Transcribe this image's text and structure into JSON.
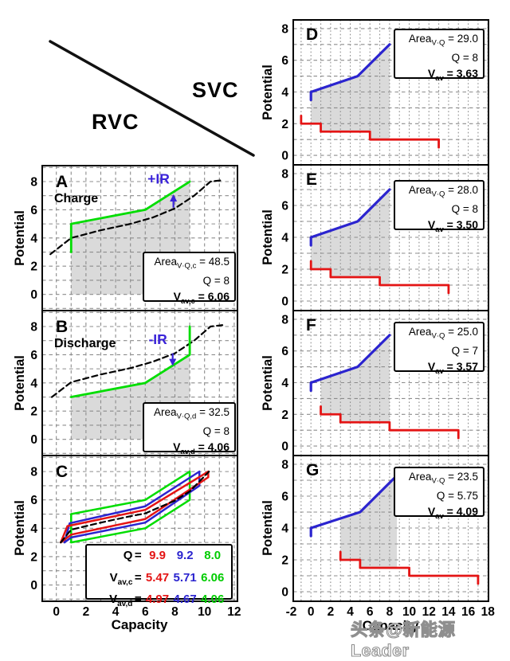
{
  "header": {
    "svc": "SVC",
    "rvc": "RVC"
  },
  "axes": {
    "ylabel": "Potential",
    "xlabel_left": "Capacity",
    "xlabel_right": "Capacity"
  },
  "watermark": "头条@新能源Leader",
  "colors": {
    "green": "#00dd00",
    "blue": "#2b24cf",
    "red": "#e41414",
    "dashed": "#000000",
    "annotation": "#3a23d9",
    "shade": "#dadada",
    "grid": "#8c8c8c",
    "frame": "#000000"
  },
  "chart_data": [
    {
      "id": "A",
      "label": "A",
      "sublabel": "Charge",
      "type": "line",
      "xlim": [
        -0.95,
        12.22
      ],
      "ylim": [
        -1.15,
        9.13
      ],
      "xticks": [
        0,
        2,
        4,
        6,
        8,
        10,
        12
      ],
      "yticks": [
        0,
        2,
        4,
        6,
        8
      ],
      "xticks_visible": false,
      "grid_step": 1,
      "shade": [
        [
          1,
          0
        ],
        [
          1,
          5
        ],
        [
          6,
          6
        ],
        [
          9,
          8
        ],
        [
          9,
          0
        ]
      ],
      "series": [
        {
          "name": "rvc-dashed-line",
          "color": "#000000",
          "width": 2.2,
          "dash": "7 4.5",
          "points": [
            [
              -0.4,
              2.85
            ],
            [
              1,
              4.0
            ],
            [
              3,
              4.55
            ],
            [
              5,
              5.0
            ],
            [
              6.5,
              5.45
            ],
            [
              8,
              6.1
            ],
            [
              9.3,
              7.0
            ],
            [
              10.4,
              8.0
            ],
            [
              11.2,
              8.1
            ]
          ]
        },
        {
          "name": "svc-charge-line",
          "color": "#00dd00",
          "width": 2.8,
          "points": [
            [
              1,
              3
            ],
            [
              1,
              5
            ],
            [
              6,
              6
            ],
            [
              9,
              8
            ]
          ]
        }
      ],
      "annotation": {
        "text": "+IR",
        "x": 7.9,
        "y_from": 6.15,
        "y_to": 7.1,
        "text_x": 6.9,
        "text_y": 7.85
      },
      "stats": [
        {
          "main": "Area",
          "sub": "V·Q,c",
          "rest": " = 48.5"
        },
        {
          "main": "Q",
          "sub": "",
          "rest": " = 8"
        },
        {
          "main": "V",
          "sub": "av,c",
          "rest": " = 6.06"
        }
      ]
    },
    {
      "id": "B",
      "label": "B",
      "sublabel": "Discharge",
      "type": "line",
      "xlim": [
        -0.95,
        12.22
      ],
      "ylim": [
        -1.15,
        9.13
      ],
      "xticks": [
        0,
        2,
        4,
        6,
        8,
        10,
        12
      ],
      "yticks": [
        0,
        2,
        4,
        6,
        8
      ],
      "xticks_visible": false,
      "grid_step": 1,
      "shade": [
        [
          1,
          0
        ],
        [
          1,
          3
        ],
        [
          6,
          4
        ],
        [
          9,
          6
        ],
        [
          9,
          0
        ]
      ],
      "series": [
        {
          "name": "rvc-dashed-line",
          "color": "#000000",
          "width": 2.2,
          "dash": "7 4.5",
          "points": [
            [
              -0.3,
              3.0
            ],
            [
              1,
              4.05
            ],
            [
              3,
              4.6
            ],
            [
              5,
              5.05
            ],
            [
              6.5,
              5.5
            ],
            [
              8,
              6.1
            ],
            [
              9.3,
              7.0
            ],
            [
              10.4,
              8.0
            ],
            [
              11.2,
              8.1
            ]
          ]
        },
        {
          "name": "svc-discharge-line",
          "color": "#00dd00",
          "width": 2.8,
          "points": [
            [
              1,
              3
            ],
            [
              6,
              4
            ],
            [
              9,
              6
            ],
            [
              9,
              8
            ]
          ]
        }
      ],
      "annotation": {
        "text": "-IR",
        "x": 7.85,
        "y_from": 6.1,
        "y_to": 5.2,
        "text_x": 6.85,
        "text_y": 6.75
      },
      "stats": [
        {
          "main": "Area",
          "sub": "V·Q,d",
          "rest": " = 32.5"
        },
        {
          "main": "Q",
          "sub": "",
          "rest": " = 8"
        },
        {
          "main": "V",
          "sub": "av,d",
          "rest": " = 4.06"
        }
      ]
    },
    {
      "id": "C",
      "label": "C",
      "sublabel": "",
      "type": "line",
      "xlim": [
        -0.95,
        12.22
      ],
      "ylim": [
        -1.15,
        9.13
      ],
      "xticks": [
        0,
        2,
        4,
        6,
        8,
        10,
        12
      ],
      "yticks": [
        0,
        2,
        4,
        6,
        8
      ],
      "xticks_visible": true,
      "grid_step": 1,
      "series": [
        {
          "name": "green-loop",
          "color": "#00dd00",
          "width": 2.5,
          "points": [
            [
              1,
              3
            ],
            [
              1,
              5
            ],
            [
              6,
              6
            ],
            [
              9,
              8
            ],
            [
              9,
              6
            ],
            [
              6,
              4
            ],
            [
              1,
              3
            ]
          ]
        },
        {
          "name": "blue-loop",
          "color": "#2b24cf",
          "width": 2.5,
          "points": [
            [
              0.55,
              3
            ],
            [
              0.9,
              4.35
            ],
            [
              6,
              5.55
            ],
            [
              9.65,
              8
            ],
            [
              9.65,
              7.0
            ],
            [
              6,
              4.4
            ],
            [
              1,
              3.35
            ],
            [
              0.55,
              3
            ]
          ]
        },
        {
          "name": "red-loop",
          "color": "#e41414",
          "width": 2.5,
          "points": [
            [
              0.3,
              3
            ],
            [
              0.75,
              4.15
            ],
            [
              6,
              5.3
            ],
            [
              10.25,
              8
            ],
            [
              10.25,
              7.6
            ],
            [
              6,
              4.65
            ],
            [
              1,
              3.55
            ],
            [
              0.3,
              3
            ]
          ]
        },
        {
          "name": "equilibrium-dashed-line",
          "color": "#000000",
          "width": 2.2,
          "dash": "7 4.5",
          "points": [
            [
              0.3,
              3.0
            ],
            [
              1,
              3.9
            ],
            [
              3,
              4.4
            ],
            [
              5,
              4.85
            ],
            [
              6,
              5.05
            ],
            [
              8,
              5.95
            ],
            [
              9,
              6.6
            ],
            [
              10.3,
              8.0
            ]
          ]
        }
      ],
      "table": {
        "value_colors": [
          "#e41414",
          "#2b24cf",
          "#00cc00"
        ],
        "rows": [
          {
            "main": "Q",
            "sub": "",
            "eq": "=",
            "values": [
              "9.9",
              "9.2",
              "8.0"
            ]
          },
          {
            "main": "V",
            "sub": "av,c",
            "eq": "=",
            "values": [
              "5.47",
              "5.71",
              "6.06"
            ]
          },
          {
            "main": "V",
            "sub": "av,d",
            "eq": "=",
            "values": [
              "4.97",
              "4.67",
              "4.06"
            ]
          }
        ]
      }
    },
    {
      "id": "D",
      "label": "D",
      "sublabel": "",
      "type": "line",
      "xlim": [
        -1.8,
        18.06
      ],
      "ylim": [
        -0.6,
        8.55
      ],
      "xticks": [
        -2,
        0,
        2,
        4,
        6,
        8,
        10,
        12,
        14,
        16,
        18
      ],
      "yticks": [
        0,
        2,
        4,
        6,
        8
      ],
      "xticks_visible": false,
      "grid_step": 1,
      "shade": [
        [
          0,
          4
        ],
        [
          4.75,
          5
        ],
        [
          8,
          7
        ],
        [
          8,
          1
        ],
        [
          6,
          1
        ],
        [
          6,
          1.5
        ],
        [
          1,
          1.5
        ],
        [
          1,
          2
        ],
        [
          0,
          2
        ]
      ],
      "series": [
        {
          "name": "charge-blue-curve",
          "color": "#2b24cf",
          "width": 3.2,
          "points": [
            [
              0,
              3.5
            ],
            [
              0,
              4
            ],
            [
              4.75,
              5
            ],
            [
              8,
              7
            ]
          ]
        },
        {
          "name": "discharge-red-steps",
          "color": "#e41414",
          "width": 2.8,
          "points": [
            [
              -1,
              2.5
            ],
            [
              -1,
              2
            ],
            [
              1,
              2
            ],
            [
              1,
              1.5
            ],
            [
              6,
              1.5
            ],
            [
              6,
              1
            ],
            [
              13,
              1
            ],
            [
              13,
              0.5
            ]
          ]
        }
      ],
      "stats": [
        {
          "main": "Area",
          "sub": "V·Q",
          "rest": " = 29.0"
        },
        {
          "main": "Q",
          "sub": "",
          "rest": " = 8"
        },
        {
          "main": "V",
          "sub": "av",
          "rest": " = 3.63"
        }
      ]
    },
    {
      "id": "E",
      "label": "E",
      "sublabel": "",
      "type": "line",
      "xlim": [
        -1.8,
        18.06
      ],
      "ylim": [
        -0.6,
        8.55
      ],
      "xticks": [
        -2,
        0,
        2,
        4,
        6,
        8,
        10,
        12,
        14,
        16,
        18
      ],
      "yticks": [
        0,
        2,
        4,
        6,
        8
      ],
      "xticks_visible": false,
      "grid_step": 1,
      "shade": [
        [
          0,
          4
        ],
        [
          4.75,
          5
        ],
        [
          8,
          7
        ],
        [
          8,
          1
        ],
        [
          7,
          1
        ],
        [
          7,
          1.5
        ],
        [
          2,
          1.5
        ],
        [
          2,
          2
        ],
        [
          0,
          2
        ]
      ],
      "series": [
        {
          "name": "charge-blue-curve",
          "color": "#2b24cf",
          "width": 3.2,
          "points": [
            [
              0,
              3.5
            ],
            [
              0,
              4
            ],
            [
              4.75,
              5
            ],
            [
              8,
              7
            ]
          ]
        },
        {
          "name": "discharge-red-steps",
          "color": "#e41414",
          "width": 2.8,
          "points": [
            [
              0,
              2.5
            ],
            [
              0,
              2
            ],
            [
              2,
              2
            ],
            [
              2,
              1.5
            ],
            [
              7,
              1.5
            ],
            [
              7,
              1
            ],
            [
              14,
              1
            ],
            [
              14,
              0.5
            ]
          ]
        }
      ],
      "stats": [
        {
          "main": "Area",
          "sub": "V·Q",
          "rest": " = 28.0"
        },
        {
          "main": "Q",
          "sub": "",
          "rest": " = 8"
        },
        {
          "main": "V",
          "sub": "av",
          "rest": " = 3.50"
        }
      ]
    },
    {
      "id": "F",
      "label": "F",
      "sublabel": "",
      "type": "line",
      "xlim": [
        -1.8,
        18.06
      ],
      "ylim": [
        -0.6,
        8.55
      ],
      "xticks": [
        -2,
        0,
        2,
        4,
        6,
        8,
        10,
        12,
        14,
        16,
        18
      ],
      "yticks": [
        0,
        2,
        4,
        6,
        8
      ],
      "xticks_visible": false,
      "grid_step": 1,
      "shade": [
        [
          1,
          4.21
        ],
        [
          4.75,
          5
        ],
        [
          8,
          7
        ],
        [
          8,
          1.5
        ],
        [
          3,
          1.5
        ],
        [
          3,
          2
        ],
        [
          1,
          2
        ]
      ],
      "series": [
        {
          "name": "charge-blue-curve",
          "color": "#2b24cf",
          "width": 3.2,
          "points": [
            [
              0,
              3.5
            ],
            [
              0,
              4
            ],
            [
              4.75,
              5
            ],
            [
              8,
              7
            ]
          ]
        },
        {
          "name": "discharge-red-steps",
          "color": "#e41414",
          "width": 2.8,
          "points": [
            [
              1,
              2.5
            ],
            [
              1,
              2
            ],
            [
              3,
              2
            ],
            [
              3,
              1.5
            ],
            [
              8,
              1.5
            ],
            [
              8,
              1
            ],
            [
              15,
              1
            ],
            [
              15,
              0.5
            ]
          ]
        }
      ],
      "stats": [
        {
          "main": "Area",
          "sub": "V·Q",
          "rest": " = 25.0"
        },
        {
          "main": "Q",
          "sub": "",
          "rest": " = 7"
        },
        {
          "main": "V",
          "sub": "av",
          "rest": " = 3.57"
        }
      ]
    },
    {
      "id": "G",
      "label": "G",
      "sublabel": "",
      "type": "line",
      "xlim": [
        -1.8,
        18.06
      ],
      "ylim": [
        -0.6,
        8.55
      ],
      "xticks": [
        -2,
        0,
        2,
        4,
        6,
        8,
        10,
        12,
        14,
        16,
        18
      ],
      "yticks": [
        0,
        2,
        4,
        6,
        8
      ],
      "xticks_visible": true,
      "grid_step": 1,
      "shade": [
        [
          3,
          4.6
        ],
        [
          5,
          5
        ],
        [
          8.75,
          7.3
        ],
        [
          8.75,
          1.5
        ],
        [
          5,
          1.5
        ],
        [
          5,
          2
        ],
        [
          3,
          2
        ]
      ],
      "series": [
        {
          "name": "charge-blue-curve",
          "color": "#2b24cf",
          "width": 3.2,
          "points": [
            [
              0,
              3.5
            ],
            [
              0,
              4
            ],
            [
              5,
              5
            ],
            [
              8.75,
              7.3
            ]
          ]
        },
        {
          "name": "discharge-red-steps",
          "color": "#e41414",
          "width": 2.8,
          "points": [
            [
              3,
              2.5
            ],
            [
              3,
              2
            ],
            [
              5,
              2
            ],
            [
              5,
              1.5
            ],
            [
              10,
              1.5
            ],
            [
              10,
              1
            ],
            [
              17,
              1
            ],
            [
              17,
              0.5
            ]
          ]
        }
      ],
      "stats": [
        {
          "main": "Area",
          "sub": "V·Q",
          "rest": " = 23.5"
        },
        {
          "main": "Q",
          "sub": "",
          "rest": " = 5.75"
        },
        {
          "main": "V",
          "sub": "av",
          "rest": " = 4.09"
        }
      ]
    }
  ]
}
